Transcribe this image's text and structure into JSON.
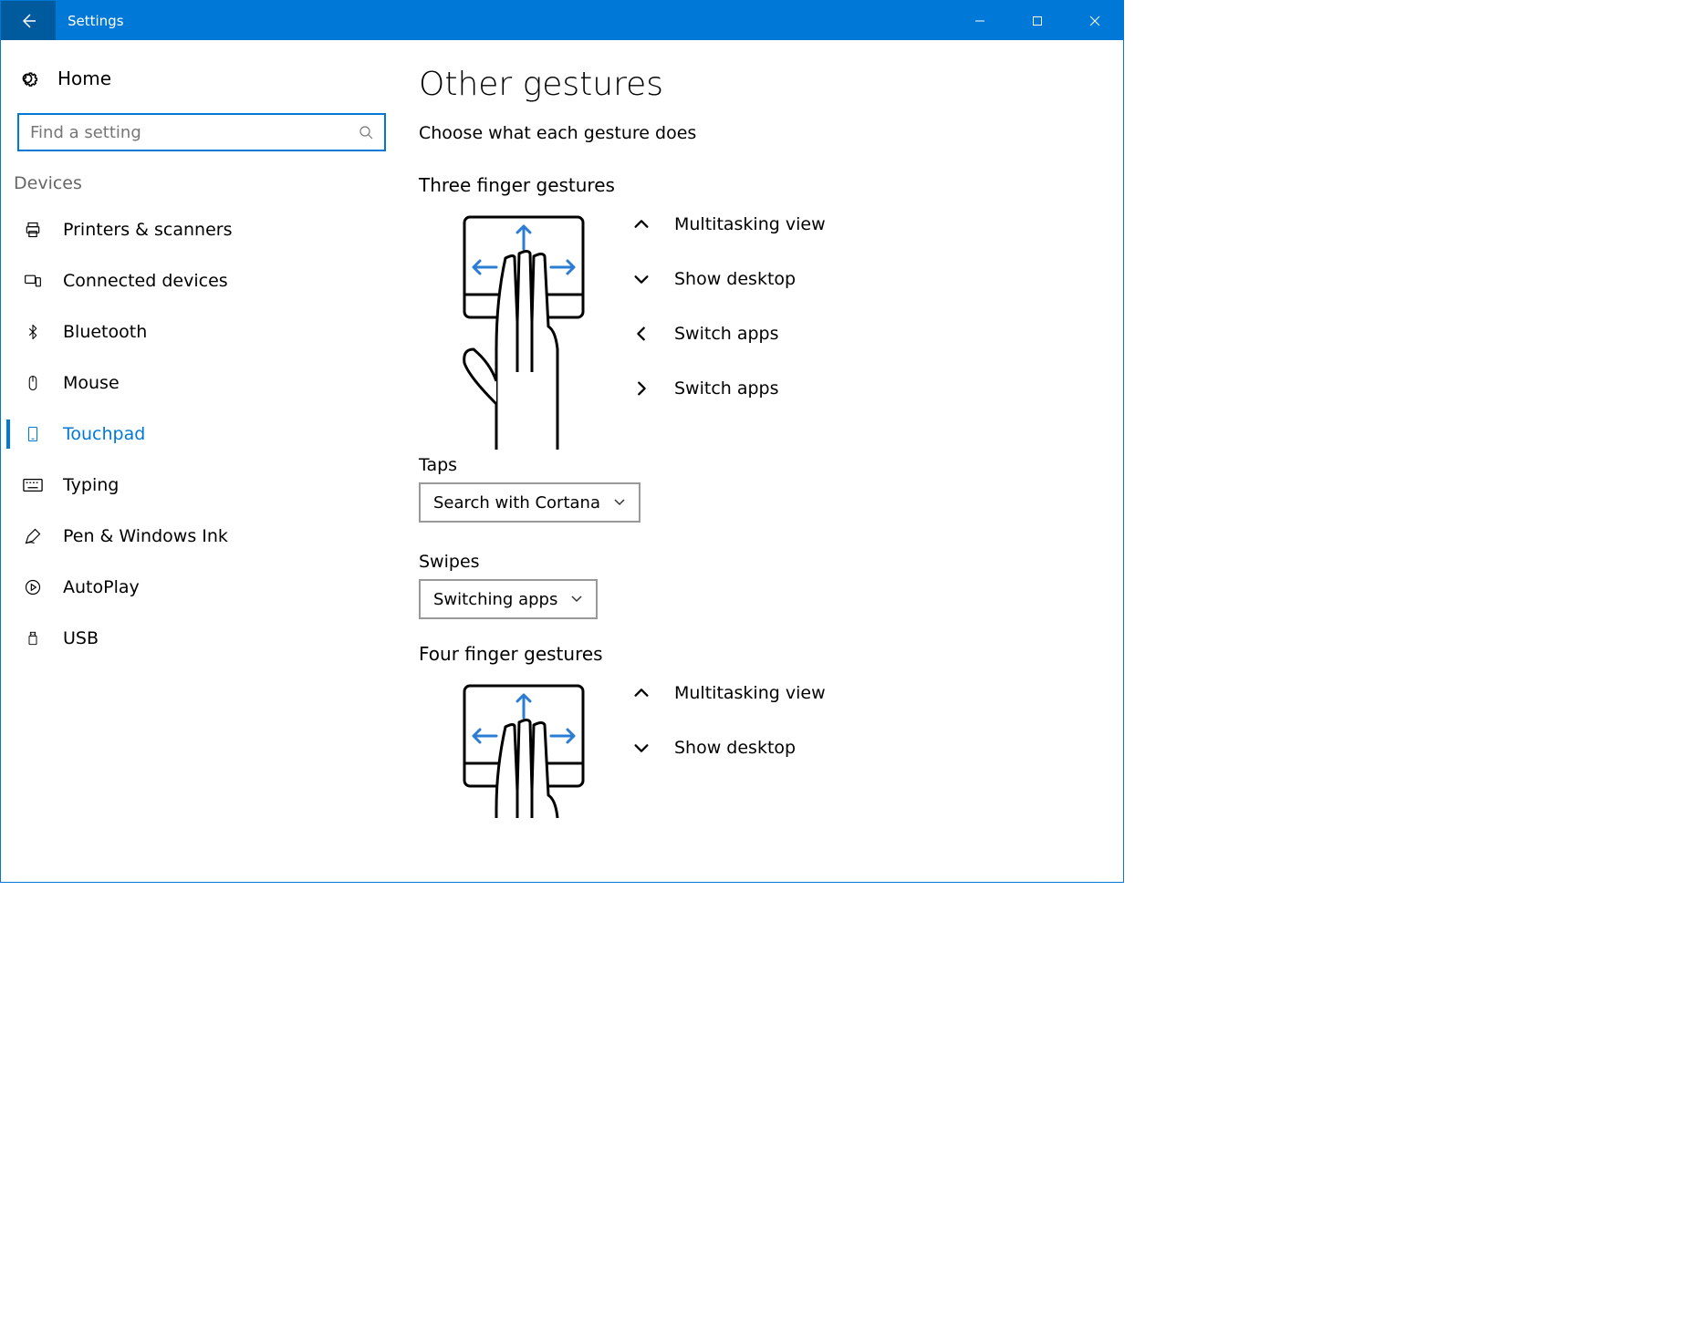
{
  "window": {
    "title": "Settings"
  },
  "sidebar": {
    "home_label": "Home",
    "search_placeholder": "Find a setting",
    "section": "Devices",
    "items": [
      {
        "label": "Printers & scanners",
        "icon": "printer"
      },
      {
        "label": "Connected devices",
        "icon": "devices"
      },
      {
        "label": "Bluetooth",
        "icon": "bluetooth"
      },
      {
        "label": "Mouse",
        "icon": "mouse"
      },
      {
        "label": "Touchpad",
        "icon": "tablet",
        "active": true
      },
      {
        "label": "Typing",
        "icon": "keyboard"
      },
      {
        "label": "Pen & Windows Ink",
        "icon": "pen"
      },
      {
        "label": "AutoPlay",
        "icon": "autoplay"
      },
      {
        "label": "USB",
        "icon": "usb"
      }
    ]
  },
  "main": {
    "heading": "Other gestures",
    "subtitle": "Choose what each gesture does",
    "three_finger": {
      "title": "Three finger gestures",
      "gestures": [
        {
          "dir": "up",
          "label": "Multitasking view"
        },
        {
          "dir": "down",
          "label": "Show desktop"
        },
        {
          "dir": "left",
          "label": "Switch apps"
        },
        {
          "dir": "right",
          "label": "Switch apps"
        }
      ],
      "taps_label": "Taps",
      "taps_value": "Search with Cortana",
      "swipes_label": "Swipes",
      "swipes_value": "Switching apps"
    },
    "four_finger": {
      "title": "Four finger gestures",
      "gestures": [
        {
          "dir": "up",
          "label": "Multitasking view"
        },
        {
          "dir": "down",
          "label": "Show desktop"
        }
      ]
    }
  },
  "colors": {
    "accent": "#0078d7",
    "accent_dark": "#005a9e",
    "arrow_blue": "#2b7cd3",
    "text_muted": "#666666",
    "border_grey": "#999999"
  }
}
